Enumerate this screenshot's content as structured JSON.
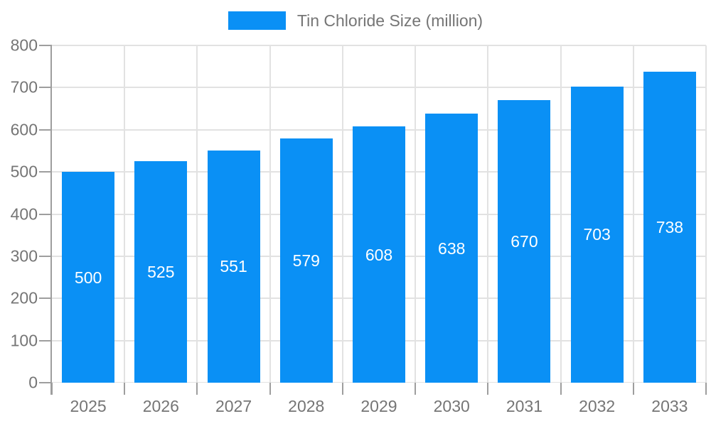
{
  "chart_data": {
    "type": "bar",
    "title": "Tin Chloride Size (million)",
    "categories": [
      "2025",
      "2026",
      "2027",
      "2028",
      "2029",
      "2030",
      "2031",
      "2032",
      "2033"
    ],
    "series": [
      {
        "name": "Tin Chloride Size (million)",
        "values": [
          500,
          525,
          551,
          579,
          608,
          638,
          670,
          703,
          738
        ]
      }
    ],
    "xlabel": "",
    "ylabel": "",
    "ylim": [
      0,
      800
    ],
    "y_ticks": [
      0,
      100,
      200,
      300,
      400,
      500,
      600,
      700,
      800
    ],
    "grid": true,
    "legend_position": "top",
    "value_labels": "centered-inside-bars"
  },
  "colors": {
    "bar": "#0a90f5",
    "bar_value_text": "#ffffff",
    "axis_text": "#757575",
    "legend_text": "#757575",
    "gridline": "#e2e2e2",
    "axis_line": "#9e9e9e",
    "background": "#ffffff"
  }
}
